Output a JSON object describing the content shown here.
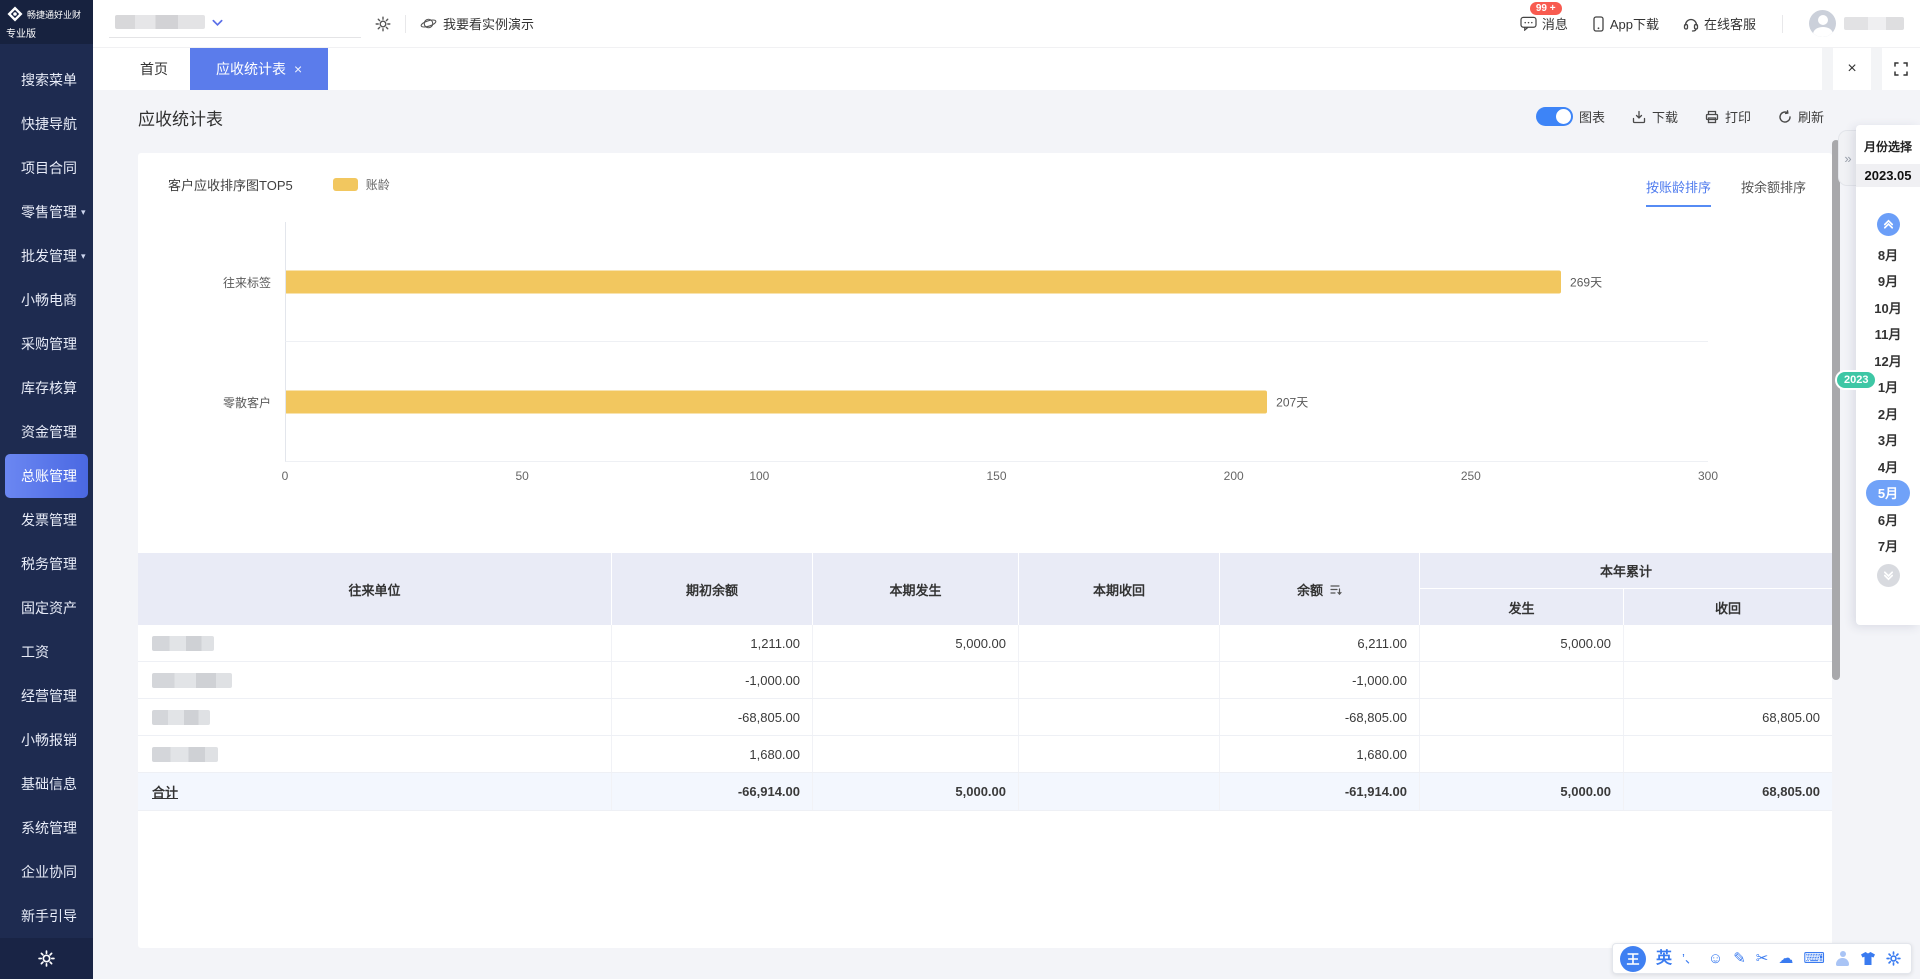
{
  "brand": {
    "name": "畅捷通好业财",
    "edition": "专业版"
  },
  "topbar": {
    "company_dropdown_blurred": true,
    "demo_link": "我要看实例演示",
    "messages_label": "消息",
    "messages_badge": "99 +",
    "app_download_label": "App下载",
    "online_service_label": "在线客服",
    "user_blurred": true
  },
  "tab_bar": {
    "tabs": [
      {
        "label": "首页",
        "active": false,
        "closable": false
      },
      {
        "label": "应收统计表",
        "active": true,
        "closable": true
      }
    ]
  },
  "sidebar": {
    "items": [
      {
        "label": "搜索菜单"
      },
      {
        "label": "快捷导航"
      },
      {
        "label": "项目合同"
      },
      {
        "label": "零售管理",
        "expandable": true
      },
      {
        "label": "批发管理",
        "expandable": true
      },
      {
        "label": "小畅电商"
      },
      {
        "label": "采购管理"
      },
      {
        "label": "库存核算"
      },
      {
        "label": "资金管理"
      },
      {
        "label": "总账管理",
        "active": true
      },
      {
        "label": "发票管理"
      },
      {
        "label": "税务管理"
      },
      {
        "label": "固定资产"
      },
      {
        "label": "工资"
      },
      {
        "label": "经营管理"
      },
      {
        "label": "小畅报销"
      },
      {
        "label": "基础信息"
      },
      {
        "label": "系统管理"
      },
      {
        "label": "企业协同"
      },
      {
        "label": "新手引导"
      }
    ]
  },
  "page": {
    "title": "应收统计表",
    "toolbar": {
      "chart_toggle": "图表",
      "chart_toggle_on": true,
      "download": "下载",
      "print": "打印",
      "refresh": "刷新"
    }
  },
  "chart_ui": {
    "sort_tabs": [
      {
        "label": "按账龄排序",
        "active": true
      },
      {
        "label": "按余额排序",
        "active": false
      }
    ]
  },
  "chart_data": {
    "type": "bar",
    "orientation": "horizontal",
    "title": "客户应收排序图TOP5",
    "legend": [
      {
        "label": "账龄",
        "color": "#F2C75F"
      }
    ],
    "categories": [
      "往来标签",
      "零散客户"
    ],
    "values": [
      269,
      207
    ],
    "value_suffix": "天",
    "value_labels": [
      "269天",
      "207天"
    ],
    "xlim": [
      0,
      300
    ],
    "x_ticks": [
      0,
      50,
      100,
      150,
      200,
      250,
      300
    ],
    "grid": true,
    "legend_position": "top-left"
  },
  "table": {
    "columns": {
      "c1": "往来单位",
      "c2": "期初余额",
      "c3": "本期发生",
      "c4": "本期收回",
      "c5": "余额",
      "group": "本年累计",
      "g1": "发生",
      "g2": "收回"
    },
    "rows": [
      {
        "name_blurred": true,
        "blur_width": 62,
        "cells": [
          "1,211.00",
          "5,000.00",
          "",
          "6,211.00",
          "5,000.00",
          ""
        ]
      },
      {
        "name_blurred": true,
        "blur_width": 80,
        "cells": [
          "-1,000.00",
          "",
          "",
          "-1,000.00",
          "",
          ""
        ]
      },
      {
        "name_blurred": true,
        "blur_width": 58,
        "cells": [
          "-68,805.00",
          "",
          "",
          "-68,805.00",
          "",
          "68,805.00"
        ]
      },
      {
        "name_blurred": true,
        "blur_width": 66,
        "cells": [
          "1,680.00",
          "",
          "",
          "1,680.00",
          "",
          ""
        ]
      }
    ],
    "total_row": {
      "label": "合计",
      "cells": [
        "-66,914.00",
        "5,000.00",
        "",
        "-61,914.00",
        "5,000.00",
        "68,805.00"
      ]
    }
  },
  "month_panel": {
    "title": "月份选择",
    "selected": "2023.05",
    "year_badge": "2023",
    "months": [
      "8月",
      "9月",
      "10月",
      "11月",
      "12月",
      "1月",
      "2月",
      "3月",
      "4月",
      "5月",
      "6月",
      "7月"
    ],
    "active_month": "5月"
  },
  "ime_bar": {
    "lang": "英",
    "punct": "’、"
  },
  "colors": {
    "sidebar_bg": "#1E2B50",
    "active_menu": "#5B7CEB",
    "bar_yellow": "#F2C75F",
    "toggle_blue": "#3D84F7",
    "badge_red": "#F85B50",
    "year_badge_green": "#3EC7A5",
    "active_month_blue": "#70A2F8",
    "table_header_bg": "#E9EBF6",
    "total_row_bg": "#F3F7FE"
  }
}
